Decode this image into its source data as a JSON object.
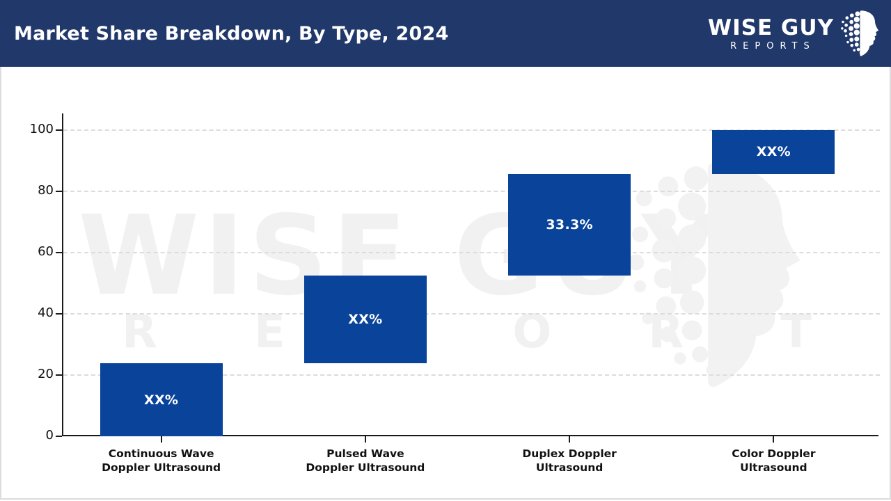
{
  "header": {
    "title": "Market Share Breakdown, By Type, 2024",
    "logo": {
      "line1": "WISE GUY",
      "line2": "REPORTS"
    }
  },
  "watermark": {
    "line1": "WISE GUY",
    "line2": "R E P O R T S"
  },
  "colors": {
    "header_bg": "#20386a",
    "bar": "#09439a",
    "grid": "#dcdcdc",
    "axis": "#1a1a1a",
    "bar_label": "#ffffff",
    "watermark": "#f1f1f2"
  },
  "chart_data": {
    "type": "bar",
    "subtype": "waterfall-floating-segments",
    "title": "Market Share Breakdown, By Type, 2024",
    "categories": [
      "Continuous Wave\nDoppler Ultrasound",
      "Pulsed Wave\nDoppler Ultrasound",
      "Duplex Doppler\nUltrasound",
      "Color Doppler\nUltrasound"
    ],
    "segments": [
      {
        "label": "XX%",
        "start": 0,
        "end": 23.8
      },
      {
        "label": "XX%",
        "start": 23.8,
        "end": 52.4
      },
      {
        "label": "33.3%",
        "start": 52.4,
        "end": 85.7
      },
      {
        "label": "XX%",
        "start": 85.7,
        "end": 100
      }
    ],
    "yticks": [
      0,
      20,
      40,
      60,
      80,
      100
    ],
    "ylim": [
      0,
      105.5
    ],
    "xlabel": "",
    "ylabel": "",
    "grid": "horizontal-dashed",
    "legend": "none"
  }
}
